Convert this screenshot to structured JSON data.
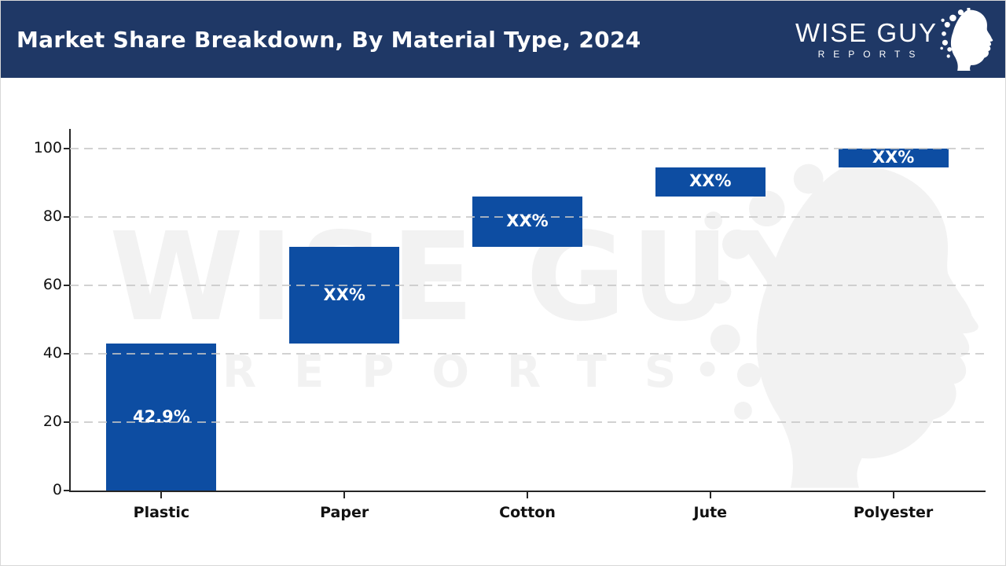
{
  "header": {
    "title": "Market Share Breakdown, By Material Type, 2024",
    "bg_color": "#1F3866",
    "logo": {
      "name": "WISE GUY",
      "tagline": "REPORTS"
    }
  },
  "watermark": {
    "line1": "WISE GUY",
    "line2": "REPORTS",
    "color": "#F2F2F2"
  },
  "chart_data": {
    "type": "bar",
    "variant": "waterfall",
    "title": "Market Share Breakdown, By Material Type, 2024",
    "categories": [
      "Plastic",
      "Paper",
      "Cotton",
      "Jute",
      "Polyester"
    ],
    "segments": [
      {
        "category": "Plastic",
        "start": 0,
        "end": 42.9,
        "label": "42.9%"
      },
      {
        "category": "Paper",
        "start": 42.9,
        "end": 71.2,
        "label": "XX%"
      },
      {
        "category": "Cotton",
        "start": 71.2,
        "end": 86.0,
        "label": "XX%"
      },
      {
        "category": "Jute",
        "start": 86.0,
        "end": 94.5,
        "label": "XX%"
      },
      {
        "category": "Polyester",
        "start": 94.5,
        "end": 100.0,
        "label": "XX%"
      }
    ],
    "yticks": [
      0,
      20,
      40,
      60,
      80,
      100
    ],
    "ylim": [
      0,
      105.5
    ],
    "xlabel": "",
    "ylabel": "",
    "grid": "horizontal-dashed",
    "legend": "none",
    "bar_color": "#0D4DA2",
    "bar_label_color": "#FFFFFF",
    "axis_color": "#262626",
    "grid_color": "#C6C6C6",
    "tick_label_color": "#111111"
  }
}
